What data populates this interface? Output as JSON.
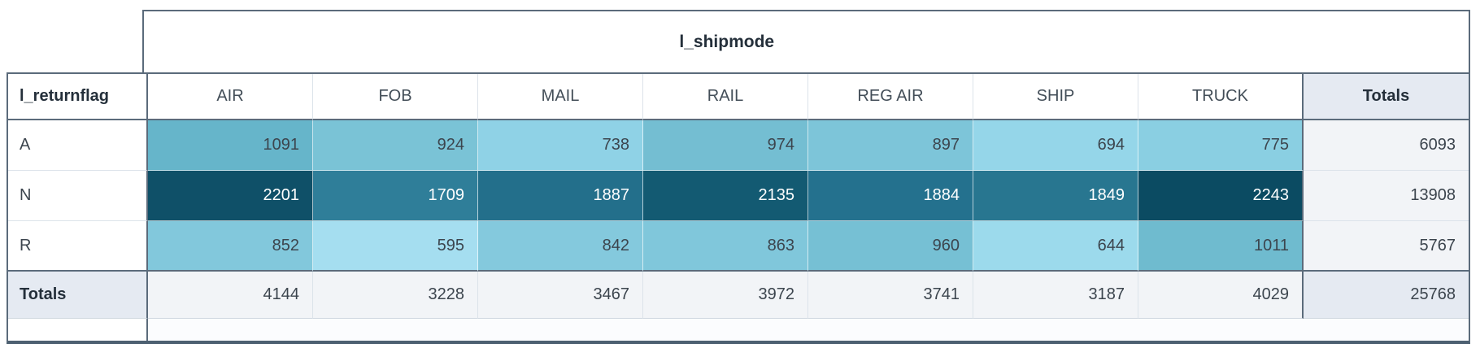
{
  "pivot": {
    "column_dimension": "l_shipmode",
    "row_dimension": "l_returnflag",
    "columns": [
      "AIR",
      "FOB",
      "MAIL",
      "RAIL",
      "REG AIR",
      "SHIP",
      "TRUCK"
    ],
    "totals_label": "Totals",
    "rows": [
      {
        "label": "A",
        "values": [
          1091,
          924,
          738,
          974,
          897,
          694,
          775
        ],
        "total": 6093,
        "cell_colors": [
          "#66b5ca",
          "#7ac3d6",
          "#8fd2e6",
          "#74bed2",
          "#7dc5d9",
          "#95d6e9",
          "#8acfe2"
        ],
        "value_text_color": "#3c454e"
      },
      {
        "label": "N",
        "values": [
          2201,
          1709,
          1887,
          2135,
          1884,
          1849,
          2243
        ],
        "total": 13908,
        "cell_colors": [
          "#0f5068",
          "#2f7e99",
          "#236f8b",
          "#135a72",
          "#24718e",
          "#287690",
          "#0b4b62"
        ],
        "value_text_color": "#ffffff"
      },
      {
        "label": "R",
        "values": [
          852,
          595,
          842,
          863,
          960,
          644,
          1011
        ],
        "total": 5767,
        "cell_colors": [
          "#82c8dc",
          "#a5def0",
          "#84c9dd",
          "#80c7db",
          "#76c0d4",
          "#9cdaec",
          "#6fbbcf"
        ],
        "value_text_color": "#3c454e"
      }
    ],
    "column_totals": [
      4144,
      3228,
      3467,
      3972,
      3741,
      3187,
      4029
    ],
    "grand_total": 25768
  },
  "theme": {
    "border_dark": "#5b6b7b",
    "border_light": "#dce3ea",
    "border_bottom_thick": "#4d6071",
    "totals_header_bg": "#e5eaf2",
    "totals_cell_bg": "#f2f4f7",
    "footer_bg": "#fbfcfe",
    "text": "#3c454e",
    "text_bold": "#242f3a",
    "text_light": "#ffffff"
  },
  "chart_data": {
    "type": "heatmap",
    "title": "l_shipmode",
    "x_dimension": "l_shipmode",
    "y_dimension": "l_returnflag",
    "columns": [
      "AIR",
      "FOB",
      "MAIL",
      "RAIL",
      "REG AIR",
      "SHIP",
      "TRUCK"
    ],
    "rows": [
      "A",
      "N",
      "R"
    ],
    "values": [
      [
        1091,
        924,
        738,
        974,
        897,
        694,
        775
      ],
      [
        2201,
        1709,
        1887,
        2135,
        1884,
        1849,
        2243
      ],
      [
        852,
        595,
        842,
        863,
        960,
        644,
        1011
      ]
    ],
    "row_totals": [
      6093,
      13908,
      5767
    ],
    "column_totals": [
      4144,
      3228,
      3467,
      3972,
      3741,
      3187,
      4029
    ],
    "grand_total": 25768,
    "color_scale": {
      "min_value": 595,
      "max_value": 2243,
      "min_color": "#a5def0",
      "max_color": "#0b4b62"
    },
    "legend": "none",
    "grid": "on"
  }
}
